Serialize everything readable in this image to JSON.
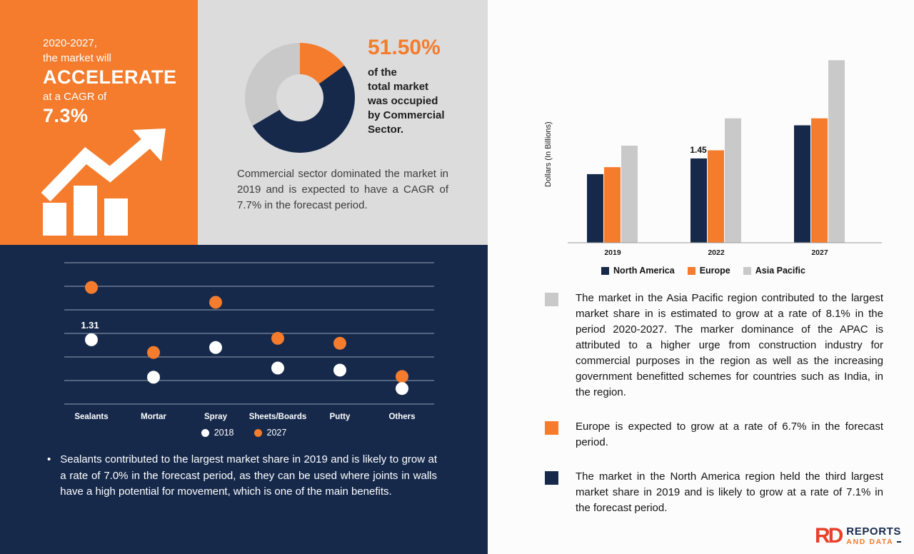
{
  "colors": {
    "orange": "#f47c2c",
    "navy": "#16294b",
    "panel_gray": "#dcdcdc",
    "bar_gray": "#c9c9c9",
    "logo_red": "#e8402a",
    "white": "#ffffff"
  },
  "accelerate_panel": {
    "line1": "2020-2027,",
    "line2": "the market will",
    "line3": "ACCELERATE",
    "line4": "at a CAGR of",
    "line5": "7.3%"
  },
  "commercial_panel": {
    "percent": "51.50%",
    "caption": "of the\ntotal market\nwas occupied\nby Commercial\nSector.",
    "paragraph": "Commercial sector dominated the market in 2019 and is expected to have a CAGR of 7.7% in the forecast period."
  },
  "product_panel": {
    "bullet": "•",
    "note": "Sealants contributed to the largest market share in 2019 and is likely to grow at a rate of 7.0% in the forecast period, as they can be used where joints in walls have a high potential for movement, which is one of the main benefits."
  },
  "regional_panel": {
    "bullets": [
      {
        "color": "#c9c9c9",
        "region": "Asia Pacific",
        "text": "The market in the Asia Pacific region contributed to the largest market share in is estimated to grow at a rate of 8.1% in the period 2020-2027. The marker dominance of the APAC is attributed to a higher urge from construction industry for commercial purposes in the region as well as the increasing government benefitted schemes for countries such as India, in the region."
      },
      {
        "color": "#f47c2c",
        "region": "Europe",
        "text": "Europe is expected to grow at a rate of 6.7% in the forecast period."
      },
      {
        "color": "#16294b",
        "region": "North America",
        "text": "The market in the North America region held the third largest market share in 2019 and is likely to grow at a rate of 7.1% in the forecast period."
      }
    ]
  },
  "logo": {
    "mark": "RD",
    "name_top": "REPORTS",
    "name_bottom": "AND DATA"
  },
  "chart_data": [
    {
      "id": "commercial_share_donut",
      "type": "pie",
      "donut": true,
      "segments": [
        {
          "label": "",
          "value": 15.0,
          "color": "#f47c2c"
        },
        {
          "label": "Commercial Sector",
          "value": 51.5,
          "color": "#16294b"
        },
        {
          "label": "",
          "value": 33.5,
          "color": "#c9c9c9"
        }
      ],
      "annotation": "51.50% of the total market was occupied by Commercial Sector."
    },
    {
      "id": "product_type_dotplot",
      "type": "scatter",
      "categories": [
        "Sealants",
        "Mortar",
        "Spray",
        "Sheets/Boards",
        "Putty",
        "Others"
      ],
      "series": [
        {
          "name": "2018",
          "color": "#ffffff",
          "values": [
            1.31,
            0.78,
            1.2,
            0.91,
            0.88,
            0.62
          ]
        },
        {
          "name": "2027",
          "color": "#f47c2c",
          "values": [
            2.05,
            1.13,
            1.84,
            1.33,
            1.26,
            0.79
          ]
        }
      ],
      "data_labels": [
        {
          "series": "2018",
          "category": "Sealants",
          "text": "1.31"
        }
      ],
      "ylim": [
        0.4,
        2.4
      ],
      "gridlines": 7,
      "grid": true,
      "legend_position": "bottom"
    },
    {
      "id": "regional_bar_chart",
      "type": "bar",
      "categories": [
        "2019",
        "2022",
        "2027"
      ],
      "series": [
        {
          "name": "North America",
          "color": "#16294b",
          "values": [
            1.18,
            1.45,
            2.02
          ]
        },
        {
          "name": "Europe",
          "color": "#f47c2c",
          "values": [
            1.3,
            1.59,
            2.14
          ]
        },
        {
          "name": "Asia Pacific",
          "color": "#c9c9c9",
          "values": [
            1.67,
            2.14,
            3.14
          ]
        }
      ],
      "data_labels": [
        {
          "series": "North America",
          "category": "2022",
          "text": "1.45"
        }
      ],
      "ylabel": "Dollars (In Billions)",
      "ylim": [
        0,
        3.5
      ],
      "grid": false,
      "legend_position": "bottom"
    }
  ]
}
